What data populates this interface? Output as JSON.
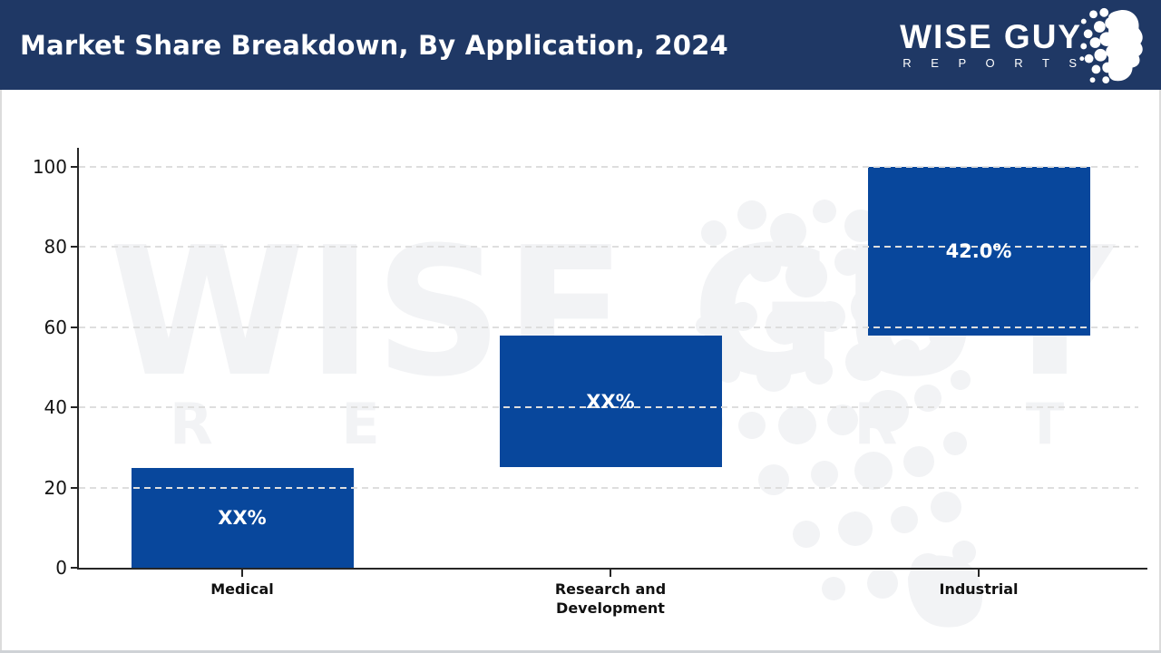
{
  "header": {
    "title": "Market Share Breakdown, By Application, 2024",
    "bg_color": "#1f3865",
    "logo": {
      "line1": "WISE GUY",
      "line2": "R E P O R T S"
    }
  },
  "watermark": {
    "line1": "WISE GUY",
    "line2": "R E P O R T S"
  },
  "chart_data": {
    "type": "bar",
    "subtype": "floating-segment-waterfall",
    "title": "Market Share Breakdown, By Application, 2024",
    "categories": [
      "Medical",
      "Research and Development",
      "Industrial"
    ],
    "bars": [
      {
        "category": "Medical",
        "start": 0,
        "end": 25,
        "label": "XX%"
      },
      {
        "category": "Research and Development",
        "start": 25,
        "end": 58,
        "label": "XX%"
      },
      {
        "category": "Industrial",
        "start": 58,
        "end": 100,
        "label": "42.0%"
      }
    ],
    "ylim": [
      0,
      100
    ],
    "yticks": [
      0,
      20,
      40,
      60,
      80,
      100
    ],
    "xlabel": "",
    "ylabel": "",
    "grid": "horizontal-dashed",
    "legend": "none",
    "bar_color": "#08479c",
    "label_color": "#ffffff",
    "axis_color": "#262626",
    "gridline_color": "#dedede"
  }
}
